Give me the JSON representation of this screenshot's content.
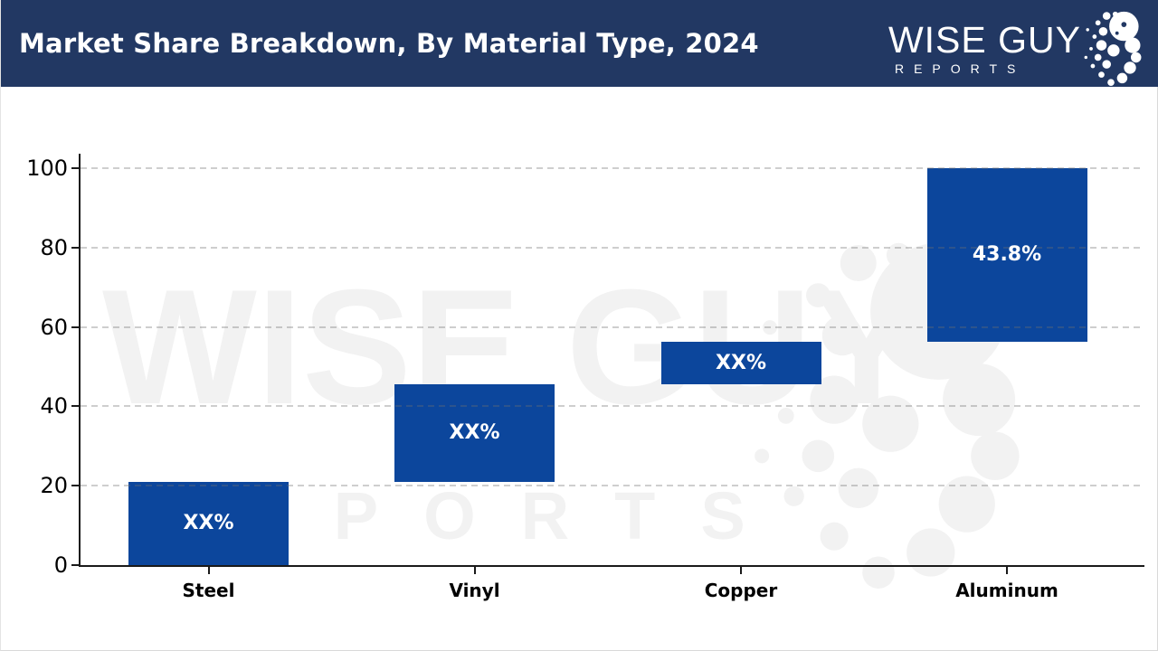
{
  "header": {
    "title": "Market Share Breakdown, By Material Type, 2024",
    "logo": {
      "line1": "WISE GUY",
      "line2": "REPORTS"
    }
  },
  "watermark": {
    "line1": "WISE GUY",
    "line2": "REPORTS"
  },
  "colors": {
    "header_bg": "#223863",
    "bar_fill": "#0c469c",
    "bar_label": "#ffffff",
    "gridline": "#d8d8d8",
    "axis": "#1a1a1a",
    "watermark": "#f2f2f2",
    "title_text": "#ffffff"
  },
  "chart_data": {
    "type": "bar",
    "subtype": "floating-waterfall",
    "title": "Market Share Breakdown, By Material Type, 2024",
    "categories": [
      "Steel",
      "Vinyl",
      "Copper",
      "Aluminum"
    ],
    "segments": [
      {
        "category": "Steel",
        "start": 0,
        "end": 21,
        "value": 21,
        "label": "XX%"
      },
      {
        "category": "Vinyl",
        "start": 21,
        "end": 45.5,
        "value": 24.5,
        "label": "XX%"
      },
      {
        "category": "Copper",
        "start": 45.5,
        "end": 56.2,
        "value": 10.7,
        "label": "XX%"
      },
      {
        "category": "Aluminum",
        "start": 56.2,
        "end": 100,
        "value": 43.8,
        "label": "43.8%"
      }
    ],
    "xlabel": "",
    "ylabel": "",
    "ylim": [
      0,
      104
    ],
    "yticks": [
      0,
      20,
      40,
      60,
      80,
      100
    ],
    "grid": "horizontal-dashed",
    "legend": "none",
    "bar_color": "#0c469c"
  }
}
